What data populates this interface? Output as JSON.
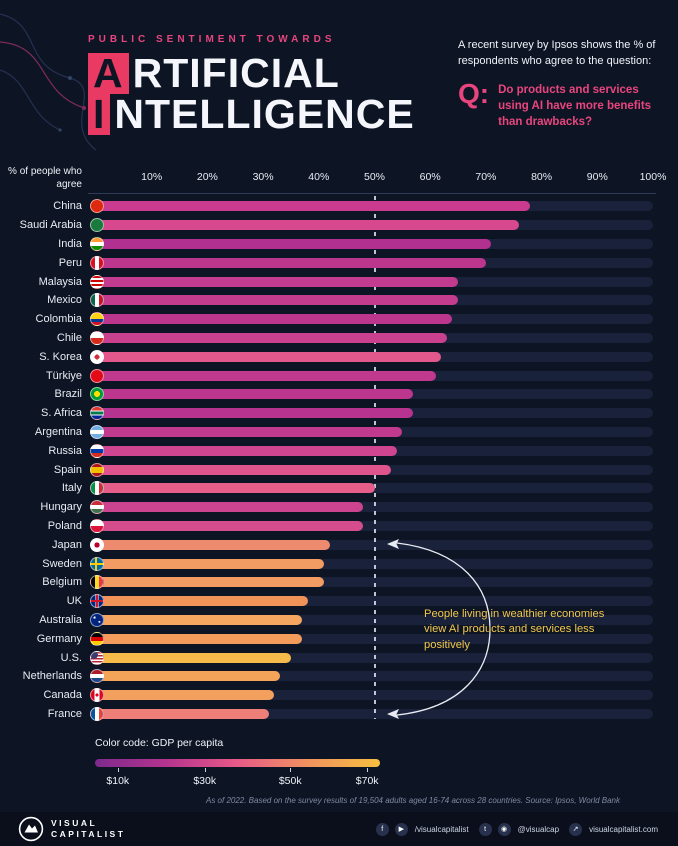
{
  "header": {
    "kicker": "PUBLIC SENTIMENT TOWARDS",
    "title_line1": {
      "hl": "A",
      "rest": "RTIFICIAL"
    },
    "title_line2": {
      "hl": "I",
      "rest": "NTELLIGENCE"
    },
    "intro": "A recent survey by Ipsos shows the % of respondents who agree to the question:",
    "q_label": "Q:",
    "question": "Do products and services using AI have more benefits than drawbacks?"
  },
  "chart_data": {
    "type": "bar",
    "orientation": "horizontal",
    "axis_label": "% of people who agree",
    "x_ticks": [
      "10%",
      "20%",
      "30%",
      "40%",
      "50%",
      "60%",
      "70%",
      "80%",
      "90%",
      "100%"
    ],
    "xlim": [
      0,
      100
    ],
    "reference_line": 50,
    "annotation": "People living in wealthier economies view AI products and services less positively",
    "countries": [
      {
        "id": "china",
        "name": "China",
        "value": 78,
        "color": "#ca3a8e",
        "flag": "#de2910"
      },
      {
        "id": "saudi-arabia",
        "name": "Saudi Arabia",
        "value": 76,
        "color": "#d8488f",
        "flag": "#1a7a3e"
      },
      {
        "id": "india",
        "name": "India",
        "value": 71,
        "color": "#b2308f",
        "flag": "linear-gradient(180deg,#ff9933 0 33%,#ffffff 33% 66%,#128807 66%)"
      },
      {
        "id": "peru",
        "name": "Peru",
        "value": 70,
        "color": "#bd368e",
        "flag": "linear-gradient(90deg,#d91023 0 33%,#ffffff 33% 66%,#d91023 66%)"
      },
      {
        "id": "malaysia",
        "name": "Malaysia",
        "value": 65,
        "color": "#c33b8e",
        "flag": "repeating-linear-gradient(180deg,#cc0001 0 2px,#ffffff 2px 4px)"
      },
      {
        "id": "mexico",
        "name": "Mexico",
        "value": 65,
        "color": "#c43c8e",
        "flag": "linear-gradient(90deg,#006847 0 33%,#ffffff 33% 66%,#ce1126 66%)"
      },
      {
        "id": "colombia",
        "name": "Colombia",
        "value": 64,
        "color": "#bc368e",
        "flag": "linear-gradient(180deg,#fcd116 0 50%,#003893 50% 75%,#ce1126 75%)"
      },
      {
        "id": "chile",
        "name": "Chile",
        "value": 63,
        "color": "#c8408e",
        "flag": "linear-gradient(180deg,#ffffff 0 50%,#d52b1e 50%)"
      },
      {
        "id": "s-korea",
        "name": "S. Korea",
        "value": 62,
        "color": "#e2578c",
        "flag": "radial-gradient(circle at 50% 50%,#cd2e3a 0 28%,#ffffff 29%)"
      },
      {
        "id": "turkiye",
        "name": "Türkiye",
        "value": 61,
        "color": "#c1398e",
        "flag": "#e30a17"
      },
      {
        "id": "brazil",
        "name": "Brazil",
        "value": 57,
        "color": "#bc368e",
        "flag": "radial-gradient(circle,#ffdf00 0 34%,#009c3b 35%)"
      },
      {
        "id": "s-africa",
        "name": "S. Africa",
        "value": 57,
        "color": "#b6338f",
        "flag": "linear-gradient(180deg,#de3831 0 30%,#ffffff 30% 38%,#007a4d 38% 62%,#ffffff 62% 70%,#002395 70%)"
      },
      {
        "id": "argentina",
        "name": "Argentina",
        "value": 55,
        "color": "#c23a8e",
        "flag": "linear-gradient(180deg,#74acdf 0 33%,#ffffff 33% 66%,#74acdf 66%)"
      },
      {
        "id": "russia",
        "name": "Russia",
        "value": 54,
        "color": "#cf458f",
        "flag": "linear-gradient(180deg,#ffffff 0 33%,#0039a6 33% 66%,#d52b1e 66%)"
      },
      {
        "id": "spain",
        "name": "Spain",
        "value": 53,
        "color": "#e0548d",
        "flag": "linear-gradient(180deg,#aa151b 0 25%,#f1bf00 25% 75%,#aa151b 75%)"
      },
      {
        "id": "italy",
        "name": "Italy",
        "value": 50,
        "color": "#e55e8a",
        "flag": "linear-gradient(90deg,#009246 0 33%,#ffffff 33% 66%,#ce2b37 66%)"
      },
      {
        "id": "hungary",
        "name": "Hungary",
        "value": 48,
        "color": "#cc438f",
        "flag": "linear-gradient(180deg,#cd2a3e 0 33%,#ffffff 33% 66%,#436f4d 66%)"
      },
      {
        "id": "poland",
        "name": "Poland",
        "value": 48,
        "color": "#d64d8e",
        "flag": "linear-gradient(180deg,#ffffff 0 50%,#dc143c 50%)"
      },
      {
        "id": "japan",
        "name": "Japan",
        "value": 42,
        "color": "#ee8a6e",
        "flag": "radial-gradient(circle,#bc002d 0 30%,#ffffff 31%)"
      },
      {
        "id": "sweden",
        "name": "Sweden",
        "value": 41,
        "color": "#f29b63",
        "flag": "linear-gradient(90deg,rgba(0,0,0,0) 0 32%,#fecc00 32% 48%,rgba(0,0,0,0) 48%),linear-gradient(180deg,#006aa7 0 42%,#fecc00 42% 58%,#006aa7 58%)"
      },
      {
        "id": "belgium",
        "name": "Belgium",
        "value": 41,
        "color": "#f29b63",
        "flag": "linear-gradient(90deg,#000000 0 33%,#fdda25 33% 66%,#ef3340 66%)"
      },
      {
        "id": "uk",
        "name": "UK",
        "value": 38,
        "color": "#f19259",
        "flag": "linear-gradient(90deg,rgba(0,0,0,0) 0 42%,#cf142b 42% 58%,rgba(0,0,0,0) 58%),linear-gradient(180deg,rgba(0,0,0,0) 0 42%,#cf142b 42% 58%,rgba(0,0,0,0) 58%),linear-gradient(90deg,#00247d 0 36%,#ffffff 36% 64%,#00247d 64%)"
      },
      {
        "id": "australia",
        "name": "Australia",
        "value": 37,
        "color": "#f4a55f",
        "flag": "radial-gradient(circle at 30% 30%,#ffffff 0 9%,rgba(0,0,0,0) 10%),radial-gradient(circle at 70% 65%,#ffffff 0 8%,rgba(0,0,0,0) 9%),linear-gradient(#00247d,#00247d)"
      },
      {
        "id": "germany",
        "name": "Germany",
        "value": 37,
        "color": "#f39c5b",
        "flag": "linear-gradient(180deg,#000000 0 33%,#dd0000 33% 66%,#ffce00 66%)"
      },
      {
        "id": "us",
        "name": "U.S.",
        "value": 35,
        "color": "#f6ba4b",
        "flag": "radial-gradient(circle at 25% 25%,#3c3b6e 0 30%,rgba(0,0,0,0) 31%),repeating-linear-gradient(180deg,#b22234 0 1.5px,#ffffff 1.5px 3px)"
      },
      {
        "id": "netherlands",
        "name": "Netherlands",
        "value": 33,
        "color": "#f4a459",
        "flag": "linear-gradient(180deg,#ae1c28 0 33%,#ffffff 33% 66%,#21468b 66%)"
      },
      {
        "id": "canada",
        "name": "Canada",
        "value": 32,
        "color": "#f3a05f",
        "flag": "radial-gradient(circle at 50% 50%,#d80621 0 18%,rgba(0,0,0,0) 19%),linear-gradient(90deg,#d80621 0 28%,#ffffff 28% 72%,#d80621 72%)"
      },
      {
        "id": "france",
        "name": "France",
        "value": 31,
        "color": "#ee7e78",
        "flag": "linear-gradient(90deg,#0055a4 0 33%,#ffffff 33% 66%,#ef4135 66%)"
      }
    ]
  },
  "legend": {
    "label": "Color code: GDP per capita",
    "ticks": [
      "$10k",
      "$30k",
      "$50k",
      "$70k"
    ],
    "tick_positions": [
      8,
      38.5,
      68.5,
      95.5
    ],
    "gradient": [
      "#7e2a8e",
      "#b5338f",
      "#e85a88",
      "#f0935f",
      "#f6bf3f"
    ]
  },
  "footnote": "As of 2022. Based on the survey results of 19,504 adults aged 16-74 across 28 countries. Source: Ipsos, World Bank",
  "footer": {
    "brand_line1": "VISUAL",
    "brand_line2": "CAPITALIST",
    "social": [
      {
        "type": "icon",
        "name": "facebook-icon",
        "glyph": "f"
      },
      {
        "type": "icon",
        "name": "youtube-icon",
        "glyph": "▶"
      },
      {
        "type": "text",
        "name": "social-handle-visualcapitalist",
        "value": "/visualcapitalist"
      },
      {
        "type": "icon",
        "name": "twitter-icon",
        "glyph": "t"
      },
      {
        "type": "icon",
        "name": "instagram-icon",
        "glyph": "◉"
      },
      {
        "type": "text",
        "name": "social-handle-instagram",
        "value": "@visualcap"
      },
      {
        "type": "icon",
        "name": "website-icon",
        "glyph": "↗"
      },
      {
        "type": "text",
        "name": "website-url",
        "value": "visualcapitalist.com"
      }
    ]
  }
}
